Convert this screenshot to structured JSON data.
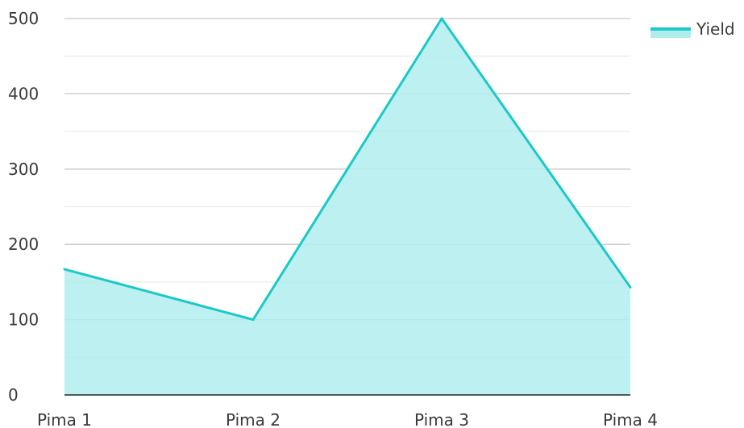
{
  "chart_data": {
    "type": "area",
    "categories": [
      "Pima 1",
      "Pima 2",
      "Pima 3",
      "Pima 4"
    ],
    "series": [
      {
        "name": "Yield",
        "values": [
          167,
          100,
          500,
          143
        ]
      }
    ],
    "y_ticks": [
      "0",
      "100",
      "200",
      "300",
      "400",
      "500"
    ],
    "ylim": [
      0,
      500
    ],
    "grid": true,
    "minor_grid": true,
    "legend": {
      "position": "top-right",
      "entries": [
        "Yield"
      ]
    },
    "colors": {
      "line": "#1cc8c8",
      "fill": "#b2eded",
      "major_grid": "#c7c7c7",
      "minor_grid": "#e6e6e6",
      "axis": "#222222"
    }
  }
}
